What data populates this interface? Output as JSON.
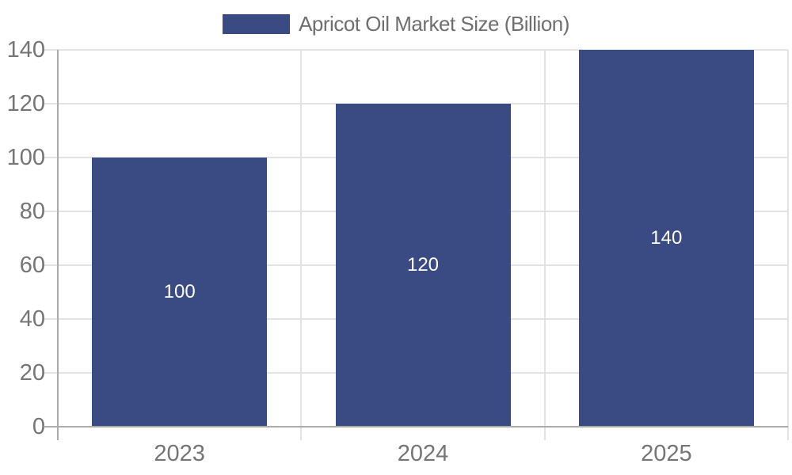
{
  "legend": {
    "label": "Apricot Oil Market Size (Billion)"
  },
  "chart_data": {
    "type": "bar",
    "title": "Apricot Oil Market Size (Billion)",
    "categories": [
      "2023",
      "2024",
      "2025"
    ],
    "series": [
      {
        "name": "Apricot Oil Market Size (Billion)",
        "values": [
          100,
          120,
          140
        ]
      }
    ],
    "bar_value_labels": [
      "100",
      "120",
      "140"
    ],
    "xlabel": "",
    "ylabel": "",
    "ylim": [
      0,
      140
    ],
    "y_ticks": [
      0,
      20,
      40,
      60,
      80,
      100,
      120,
      140
    ],
    "grid": true,
    "legend_position": "top-center",
    "colors": {
      "bar": "#3A4B83",
      "grid_line": "#E3E3E3",
      "axis_line": "#ABABAB",
      "tick_text": "#757575",
      "legend_text": "#6F6F6F",
      "bar_label_text": "#FFFFFF",
      "background": "#FFFFFF"
    }
  }
}
